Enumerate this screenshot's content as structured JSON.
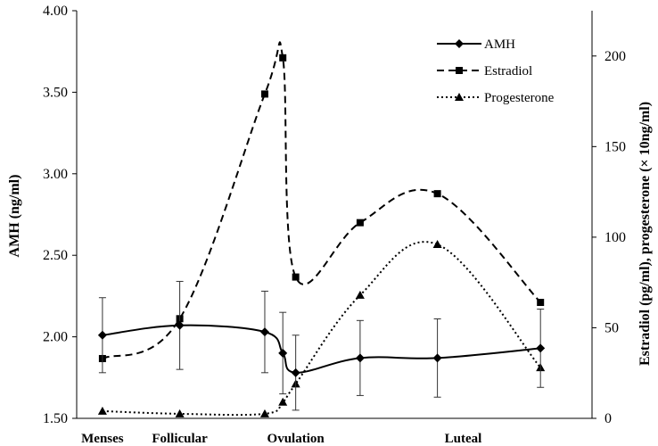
{
  "chart_data": {
    "type": "line",
    "ylabel": "AMH (ng/ml)",
    "y2label": "Estradiol (pg/ml), progesterone (× 10ng/ml)",
    "ylim": [
      1.5,
      4.0
    ],
    "y2lim": [
      0,
      225
    ],
    "yticks": [
      "1.50",
      "2.00",
      "2.50",
      "3.00",
      "3.50",
      "4.00"
    ],
    "y2ticks": [
      "0",
      "50",
      "100",
      "150",
      "200"
    ],
    "phases": [
      "Menses",
      "Follicular",
      "Ovulation",
      "Luteal"
    ],
    "xlim": [
      0,
      20
    ],
    "phase_positions": [
      1,
      4,
      8.5,
      15
    ],
    "legend": {
      "position": "top-right"
    },
    "series": [
      {
        "name": "AMH",
        "axis": "left",
        "marker": "diamond",
        "dash": "solid",
        "x": [
          1,
          4,
          7.3,
          8,
          8.5,
          11,
          14,
          18
        ],
        "y": [
          2.01,
          2.07,
          2.03,
          1.9,
          1.78,
          1.87,
          1.87,
          1.93
        ],
        "err": [
          0.23,
          0.27,
          0.25,
          0.25,
          0.23,
          0.23,
          0.24,
          0.24
        ]
      },
      {
        "name": "Estradiol",
        "axis": "right",
        "marker": "square",
        "dash": "dashed",
        "x": [
          1,
          4,
          7.3,
          8,
          8.5,
          11,
          14,
          18
        ],
        "y": [
          33,
          55,
          179,
          199,
          78,
          108,
          124,
          64
        ]
      },
      {
        "name": "Progesterone",
        "axis": "right",
        "marker": "triangle",
        "dash": "dotted",
        "x": [
          1,
          4,
          7.3,
          8,
          8.5,
          11,
          14,
          18
        ],
        "y": [
          4,
          2.5,
          2.5,
          9,
          19,
          68,
          96,
          28
        ]
      }
    ]
  }
}
